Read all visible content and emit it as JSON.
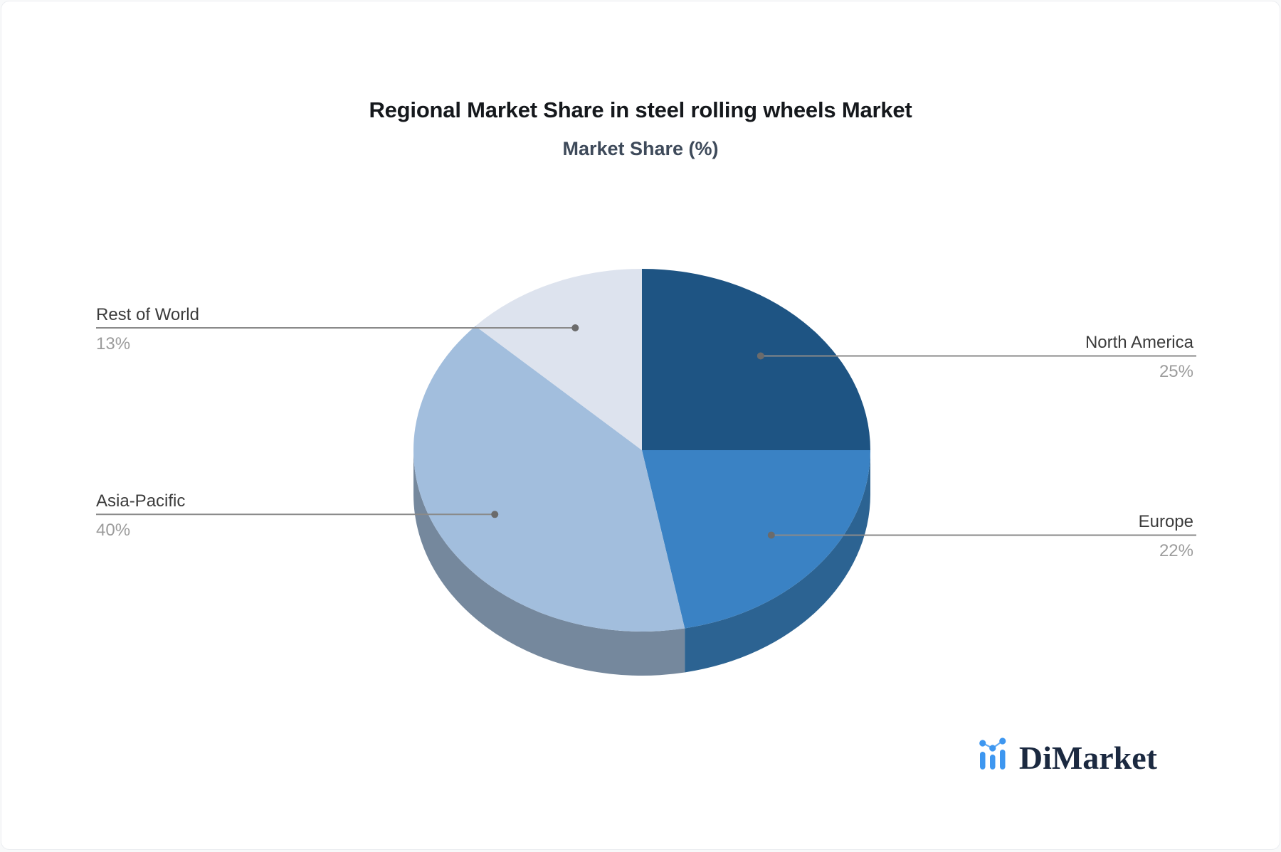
{
  "header": {
    "title": "Regional Market Share in steel rolling wheels Market",
    "subtitle": "Market Share (%)"
  },
  "chart_data": {
    "type": "pie",
    "effect": "3d",
    "title": "Regional Market Share in steel rolling wheels Market",
    "subtitle": "Market Share (%)",
    "unit": "%",
    "start_angle_deg": 0,
    "direction": "clockwise",
    "legend": "leader-line labels, no legend box",
    "slices": [
      {
        "label": "North America",
        "value": 25,
        "display": "25%",
        "color": "#1e5483",
        "side_color": "#1a4971",
        "label_side": "right"
      },
      {
        "label": "Europe",
        "value": 22,
        "display": "22%",
        "color": "#3a82c4",
        "side_color": "#2c6392",
        "label_side": "right"
      },
      {
        "label": "Asia-Pacific",
        "value": 40,
        "display": "40%",
        "color": "#a2bedd",
        "side_color": "#75889d",
        "label_side": "left"
      },
      {
        "label": "Rest of World",
        "value": 13,
        "display": "13%",
        "color": "#dde3ee",
        "side_color": "#9aa6b6",
        "label_side": "left"
      }
    ]
  },
  "branding": {
    "logo_text": "DiMarket",
    "logo_icon": "bar-line-chart-icon"
  },
  "colors": {
    "page_bg": "#f8f9fa",
    "card_bg": "#ffffff",
    "title": "#15181c",
    "subtitle": "#3e4a5a",
    "label_text": "#3b3b3b",
    "value_text": "#9c9c9c",
    "leader_line": "#8a8a8a",
    "leader_dot": "#6b6b6b",
    "logo_text": "#1b2940",
    "logo_icon": "#3e97f0"
  }
}
